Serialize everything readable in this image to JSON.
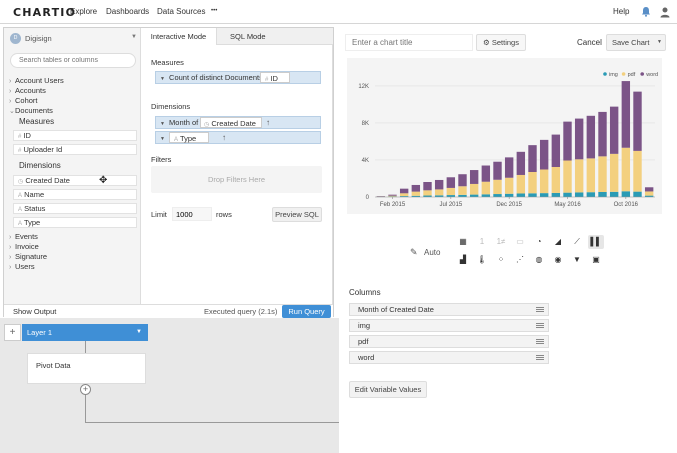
{
  "topbar": {
    "logo": "CHARTIO",
    "nav": [
      "Explore",
      "Dashboards",
      "Data Sources",
      "•••"
    ],
    "help": "Help"
  },
  "sidebar": {
    "datasource": "Digisign",
    "search_placeholder": "Search tables or columns",
    "tables_top": [
      "Account Users",
      "Accounts",
      "Cohort",
      "Documents"
    ],
    "measures_heading": "Measures",
    "measures": [
      "ID",
      "Uploader Id"
    ],
    "dimensions_heading": "Dimensions",
    "dimensions": [
      "Created Date",
      "Name",
      "Status",
      "Type"
    ],
    "tables_bottom": [
      "Events",
      "Invoice",
      "Signature",
      "Users"
    ]
  },
  "query": {
    "tabs": [
      "Interactive Mode",
      "SQL Mode"
    ],
    "measures_label": "Measures",
    "measure_pill": "Count of distinct Documents",
    "measure_field": "ID",
    "dimensions_label": "Dimensions",
    "dim1_func": "Month of",
    "dim1_field": "Created Date",
    "dim2_field": "Type",
    "filters_label": "Filters",
    "filters_placeholder": "Drop Filters Here",
    "limit_label": "Limit",
    "limit_value": "1000",
    "rows_label": "rows",
    "preview_sql": "Preview SQL"
  },
  "actions": {
    "show_output": "Show Output",
    "status": "Executed query (2.1s)",
    "run_query": "Run Query"
  },
  "pipeline": {
    "layer": "Layer 1",
    "step": "Pivot Data"
  },
  "chart_header": {
    "title_placeholder": "Enter a chart title",
    "settings": "Settings",
    "cancel": "Cancel",
    "save": "Save Chart"
  },
  "chart_data": {
    "type": "bar",
    "stacked": true,
    "x_tick_labels": [
      "Feb 2015",
      "Jul 2015",
      "Dec 2015",
      "May 2016",
      "Oct 2016"
    ],
    "y_tick_labels": [
      "0",
      "4K",
      "8K",
      "12K"
    ],
    "ylim": [
      0,
      13500
    ],
    "legend_position": "top-right",
    "categories": [
      "Jan 2015",
      "Feb 2015",
      "Mar 2015",
      "Apr 2015",
      "May 2015",
      "Jun 2015",
      "Jul 2015",
      "Aug 2015",
      "Sep 2015",
      "Oct 2015",
      "Nov 2015",
      "Dec 2015",
      "Jan 2016",
      "Feb 2016",
      "Mar 2016",
      "Apr 2016",
      "May 2016",
      "Jun 2016",
      "Jul 2016",
      "Aug 2016",
      "Sep 2016",
      "Oct 2016",
      "Nov 2016",
      "Dec 2016"
    ],
    "series": [
      {
        "name": "img",
        "color": "#2a9bb5",
        "values": [
          30,
          60,
          100,
          130,
          160,
          180,
          210,
          230,
          260,
          290,
          320,
          350,
          380,
          400,
          420,
          440,
          470,
          500,
          520,
          540,
          560,
          620,
          580,
          150
        ]
      },
      {
        "name": "pdf",
        "color": "#f3d07f",
        "values": [
          30,
          80,
          300,
          450,
          560,
          640,
          770,
          930,
          1150,
          1360,
          1540,
          1730,
          2000,
          2300,
          2550,
          2800,
          3470,
          3570,
          3650,
          3850,
          4100,
          4700,
          4400,
          450
        ]
      },
      {
        "name": "word",
        "color": "#7b5487",
        "values": [
          40,
          110,
          500,
          720,
          900,
          1020,
          1150,
          1300,
          1500,
          1750,
          1950,
          2200,
          2500,
          2900,
          3200,
          3500,
          4200,
          4400,
          4600,
          4800,
          5100,
          7200,
          6400,
          450
        ]
      }
    ]
  },
  "viz": {
    "auto_label": "Auto",
    "icons_row1": [
      "table-icon",
      "single-value-icon",
      "number-compare-icon",
      "funnel-icon",
      "pie-icon",
      "area-icon",
      "line-icon",
      "bar-icon"
    ],
    "icons_row2": [
      "stacked-bar-icon",
      "thermometer-icon",
      "scatter-icon",
      "bubble-icon",
      "globe-icon",
      "map-icon",
      "filter-icon",
      "image-icon"
    ]
  },
  "columns": {
    "heading": "Columns",
    "items": [
      "Month of Created Date",
      "img",
      "pdf",
      "word"
    ],
    "edit_button": "Edit Variable Values"
  }
}
